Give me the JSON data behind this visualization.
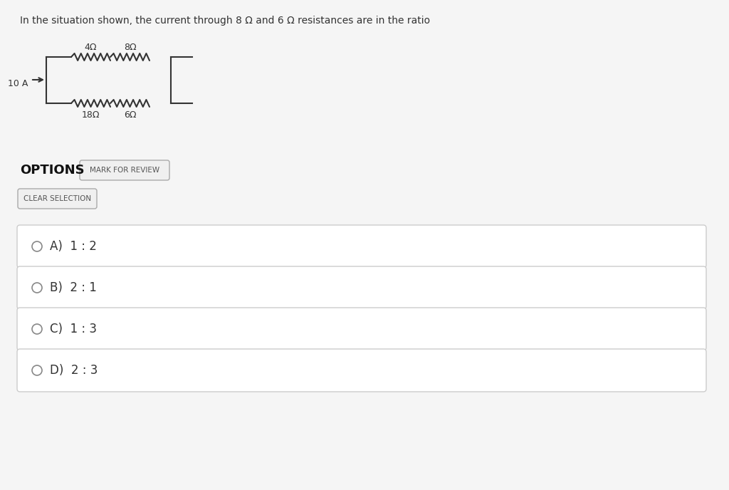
{
  "title_text": "In the situation shown, the current through 8 Ω and 6 Ω resistances are in the ratio",
  "circuit": {
    "resistors_top": [
      "4Ω",
      "8Ω"
    ],
    "resistors_bottom": [
      "18Ω",
      "6Ω"
    ],
    "current_label": "10 A"
  },
  "options_label": "OPTIONS",
  "mark_review_btn": "MARK FOR REVIEW",
  "clear_selection_btn": "CLEAR SELECTION",
  "options": [
    {
      "label": "A)",
      "value": "1 : 2"
    },
    {
      "label": "B)",
      "value": "2 : 1"
    },
    {
      "label": "C)",
      "value": "1 : 3"
    },
    {
      "label": "D)",
      "value": "2 : 3"
    }
  ],
  "bg_color": "#f5f5f5",
  "panel_color": "#ffffff",
  "border_color": "#cccccc",
  "text_color": "#333333",
  "btn_border_color": "#aaaaaa",
  "option_box_color": "#ffffff",
  "option_box_border": "#cccccc"
}
